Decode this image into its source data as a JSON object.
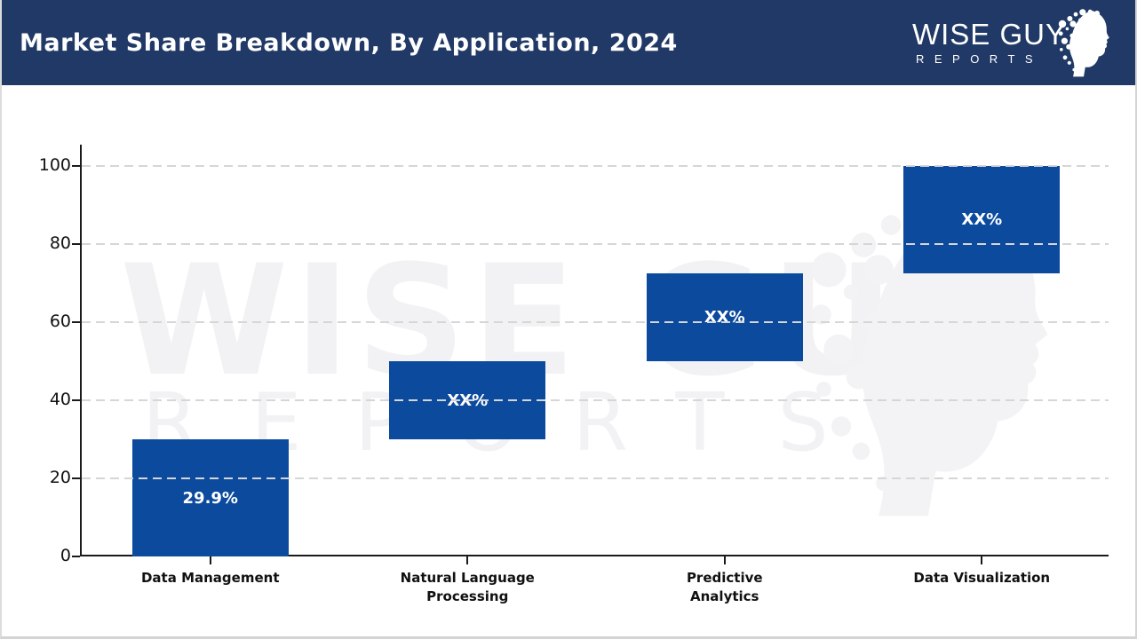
{
  "header": {
    "title": "Market Share Breakdown, By Application, 2024",
    "logo_text": "WISE GUY",
    "logo_subtext": "REPORTS",
    "logo_icon": "dotted-face-profile-icon"
  },
  "watermark": {
    "line1": "WISE GUY",
    "line2": "REPORTS",
    "icon": "dotted-face-profile-icon"
  },
  "chart_data": {
    "type": "bar",
    "subtype": "floating-waterfall",
    "title": "Market Share Breakdown, By Application, 2024",
    "categories": [
      "Data Management",
      "Natural Language\nProcessing",
      "Predictive\nAnalytics",
      "Data Visualization"
    ],
    "bars": [
      {
        "category": "Data Management",
        "start": 0,
        "end": 29.9,
        "label": "29.9%"
      },
      {
        "category": "Natural Language Processing",
        "start": 29.9,
        "end": 50,
        "label": "XX%"
      },
      {
        "category": "Predictive Analytics",
        "start": 50,
        "end": 72.5,
        "label": "XX%"
      },
      {
        "category": "Data Visualization",
        "start": 72.5,
        "end": 100,
        "label": "XX%"
      }
    ],
    "xlabel": "",
    "ylabel": "",
    "ylim": [
      0,
      100
    ],
    "yticks": [
      0,
      20,
      40,
      60,
      80,
      100
    ],
    "grid": "horizontal-dashed-above-bars",
    "legend": "none",
    "colors": {
      "bar": "#0c4a9e",
      "bar_label": "#ffffff",
      "axis": "#1a1a1a",
      "gridline": "#d6d6d6",
      "header_bg": "#213966",
      "watermark": "#f2f2f4"
    }
  }
}
